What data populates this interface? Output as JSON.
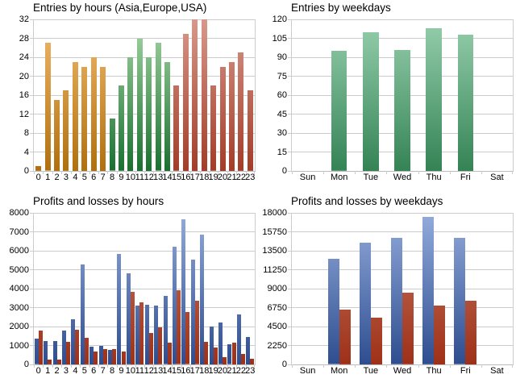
{
  "page": {
    "background": "#ffffff",
    "grid_rows": 2,
    "grid_cols": 2
  },
  "chart_data": [
    {
      "type": "bar",
      "title": "Entries by hours (Asia,Europe,USA)",
      "categories": [
        "0",
        "1",
        "2",
        "3",
        "4",
        "5",
        "6",
        "7",
        "8",
        "9",
        "10",
        "11",
        "12",
        "13",
        "14",
        "15",
        "16",
        "17",
        "18",
        "19",
        "20",
        "21",
        "22",
        "23"
      ],
      "series": [
        {
          "name": "entries",
          "values": [
            1,
            27,
            15,
            17,
            23,
            22,
            24,
            22,
            11,
            18,
            24,
            28,
            24,
            27,
            23,
            18,
            29,
            32,
            32,
            18,
            22,
            23,
            25,
            17
          ]
        }
      ],
      "bar_color_indices": [
        0,
        0,
        0,
        0,
        0,
        0,
        0,
        0,
        1,
        1,
        1,
        1,
        1,
        1,
        1,
        2,
        2,
        2,
        2,
        2,
        2,
        2,
        2,
        2
      ],
      "palette": [
        {
          "name": "asia-orange",
          "light": "#F2BA6C",
          "dark": "#B0700F"
        },
        {
          "name": "europe-green",
          "light": "#A6D7A6",
          "dark": "#1A7030"
        },
        {
          "name": "usa-red",
          "light": "#D8988A",
          "dark": "#A33C28"
        }
      ],
      "ylim": [
        0,
        32
      ],
      "ytick_step": 4,
      "grid": true,
      "legend": "none",
      "bar_frac": 0.62
    },
    {
      "type": "bar",
      "title": "Entries by weekdays",
      "categories": [
        "Sun",
        "Mon",
        "Tue",
        "Wed",
        "Thu",
        "Fri",
        "Sat"
      ],
      "series": [
        {
          "name": "entries",
          "values": [
            0,
            95,
            110,
            96,
            113,
            108,
            0
          ],
          "light": "#96CFAD",
          "dark": "#348355"
        }
      ],
      "ylim": [
        0,
        120
      ],
      "ytick_step": 15,
      "grid": true,
      "legend": "none",
      "bar_frac": 0.5
    },
    {
      "type": "bar",
      "title": "Profits and losses by hours",
      "categories": [
        "0",
        "1",
        "2",
        "3",
        "4",
        "5",
        "6",
        "7",
        "8",
        "9",
        "10",
        "11",
        "12",
        "13",
        "14",
        "15",
        "16",
        "17",
        "18",
        "19",
        "20",
        "21",
        "22",
        "23"
      ],
      "series": [
        {
          "name": "profits",
          "light": "#94ACDC",
          "dark": "#2E4D8F",
          "values": [
            1350,
            1250,
            1250,
            1800,
            2400,
            5300,
            950,
            1000,
            780,
            5850,
            4800,
            3100,
            3150,
            3100,
            3600,
            6200,
            7650,
            5550,
            6850,
            2000,
            2200,
            1050,
            2650,
            1450
          ]
        },
        {
          "name": "losses",
          "light": "#C87A62",
          "dark": "#9E3018",
          "values": [
            1800,
            250,
            270,
            1200,
            1850,
            1400,
            700,
            800,
            820,
            700,
            3850,
            3300,
            1650,
            1950,
            1150,
            3900,
            2750,
            3350,
            1200,
            900,
            400,
            1150,
            550,
            300
          ]
        }
      ],
      "ylim": [
        0,
        8000
      ],
      "ytick_step": 1000,
      "grid": true,
      "legend": "none",
      "bar_frac": 0.44
    },
    {
      "type": "bar",
      "title": "Profits and losses by weekdays",
      "categories": [
        "Sun",
        "Mon",
        "Tue",
        "Wed",
        "Thu",
        "Fri",
        "Sat"
      ],
      "series": [
        {
          "name": "profits",
          "light": "#94ACDC",
          "dark": "#2E4D8F",
          "values": [
            0,
            12500,
            14500,
            15000,
            17500,
            15000,
            0
          ]
        },
        {
          "name": "losses",
          "light": "#C87A62",
          "dark": "#9E3018",
          "values": [
            0,
            6500,
            5600,
            8500,
            7000,
            7600,
            0
          ]
        }
      ],
      "ylim": [
        0,
        18000
      ],
      "ytick_step": 2250,
      "grid": true,
      "legend": "none",
      "bar_frac": 0.36
    }
  ]
}
